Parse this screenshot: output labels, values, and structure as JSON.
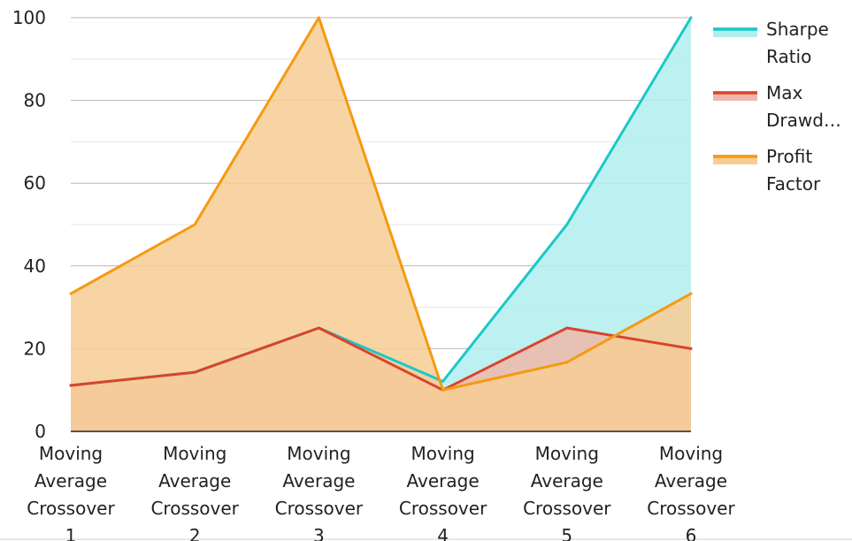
{
  "chart_data": {
    "type": "area",
    "categories": [
      "Moving Average Crossover 1",
      "Moving Average Crossover 2",
      "Moving Average Crossover 3",
      "Moving Average Crossover 4",
      "Moving Average Crossover 5",
      "Moving Average Crossover 6"
    ],
    "category_lines": [
      [
        "Moving",
        "Average",
        "Crossover",
        "1"
      ],
      [
        "Moving",
        "Average",
        "Crossover",
        "2"
      ],
      [
        "Moving",
        "Average",
        "Crossover",
        "3"
      ],
      [
        "Moving",
        "Average",
        "Crossover",
        "4"
      ],
      [
        "Moving",
        "Average",
        "Crossover",
        "5"
      ],
      [
        "Moving",
        "Average",
        "Crossover",
        "6"
      ]
    ],
    "series": [
      {
        "name": "Sharpe Ratio",
        "legend_lines": [
          "Sharpe",
          "Ratio"
        ],
        "values": [
          11.1,
          14.3,
          25,
          12.1,
          50,
          100
        ],
        "color": "#1cc8c8",
        "fill": "#b2eeee"
      },
      {
        "name": "Max Drawdown",
        "legend_lines": [
          "Max",
          "Drawd…"
        ],
        "values": [
          11.1,
          14.3,
          25,
          10,
          25,
          20
        ],
        "color": "#d9452a",
        "fill": "#f0b8aa"
      },
      {
        "name": "Profit Factor",
        "legend_lines": [
          "Profit",
          "Factor"
        ],
        "values": [
          33.3,
          50,
          100,
          10,
          16.7,
          33.3
        ],
        "color": "#f59a11",
        "fill": "#f7cd95"
      }
    ],
    "ylim": [
      0,
      100
    ],
    "yticks": [
      "0",
      "20",
      "40",
      "60",
      "80",
      "100"
    ],
    "title": "",
    "xlabel": "",
    "ylabel": "",
    "grid": true,
    "legend_position": "top-right"
  }
}
